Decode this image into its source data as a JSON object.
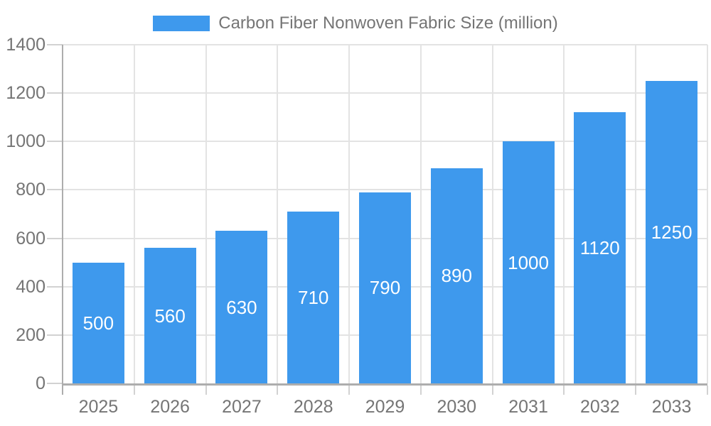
{
  "chart_data": {
    "type": "bar",
    "title": "Carbon Fiber Nonwoven Fabric Size (million)",
    "legend": {
      "label": "Carbon Fiber Nonwoven Fabric Size (million)",
      "position": "top-center"
    },
    "categories": [
      "2025",
      "2026",
      "2027",
      "2028",
      "2029",
      "2030",
      "2031",
      "2032",
      "2033"
    ],
    "values": [
      500,
      560,
      630,
      710,
      790,
      890,
      1000,
      1120,
      1250
    ],
    "bar_labels": [
      "500",
      "560",
      "630",
      "710",
      "790",
      "890",
      "1000",
      "1120",
      "1250"
    ],
    "xlabel": "",
    "ylabel": "",
    "ylim": [
      0,
      1400
    ],
    "yticks": [
      0,
      200,
      400,
      600,
      800,
      1000,
      1200,
      1400
    ],
    "grid": true,
    "colors": {
      "bar": "#3E99ED",
      "bar_label": "#FFFFFF",
      "text": "#757575",
      "axis_line": "#ADADAD",
      "gridline": "#E3E3E3",
      "tick": "#D2D2D2",
      "background": "#FFFFFF"
    }
  }
}
